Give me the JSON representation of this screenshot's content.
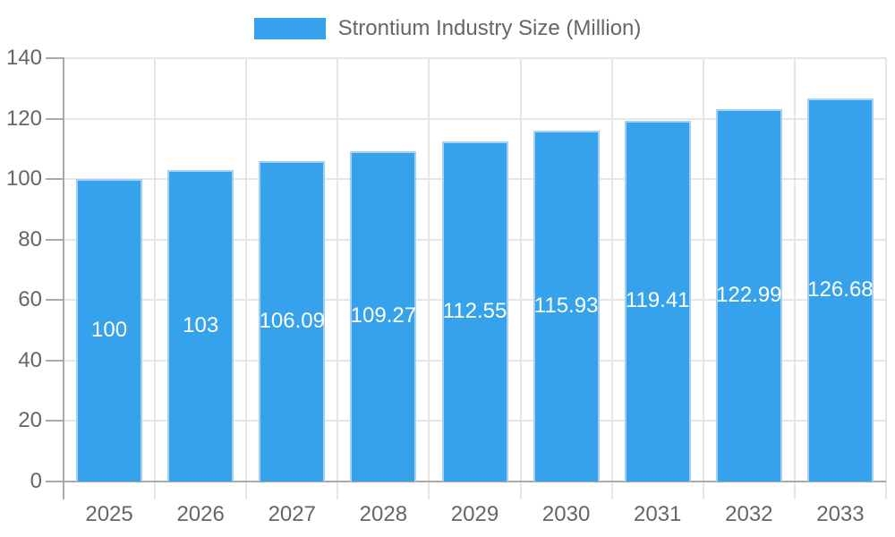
{
  "chart_data": {
    "type": "bar",
    "title": "Strontium Industry Size (Million)",
    "categories": [
      "2025",
      "2026",
      "2027",
      "2028",
      "2029",
      "2030",
      "2031",
      "2032",
      "2033"
    ],
    "values": [
      100,
      103,
      106.09,
      109.27,
      112.55,
      115.93,
      119.41,
      122.99,
      126.68
    ],
    "value_labels": [
      "100",
      "103",
      "106.09",
      "109.27",
      "112.55",
      "115.93",
      "119.41",
      "122.99",
      "126.68"
    ],
    "xlabel": "",
    "ylabel": "",
    "ylim": [
      0,
      140
    ],
    "yticks": [
      0,
      20,
      40,
      60,
      80,
      100,
      120,
      140
    ],
    "grid": true,
    "legend_position": "top",
    "colors": {
      "bar": "#36A2EB",
      "bar_edge": "#A3D0F3",
      "value_label": "#FFFFFF",
      "axis_text": "#666666",
      "gridline": "#E6E6E6",
      "axis_line": "#A9A9A9",
      "background": "#FFFFFF"
    }
  },
  "legend": {
    "label": "Strontium Industry Size (Million)"
  }
}
